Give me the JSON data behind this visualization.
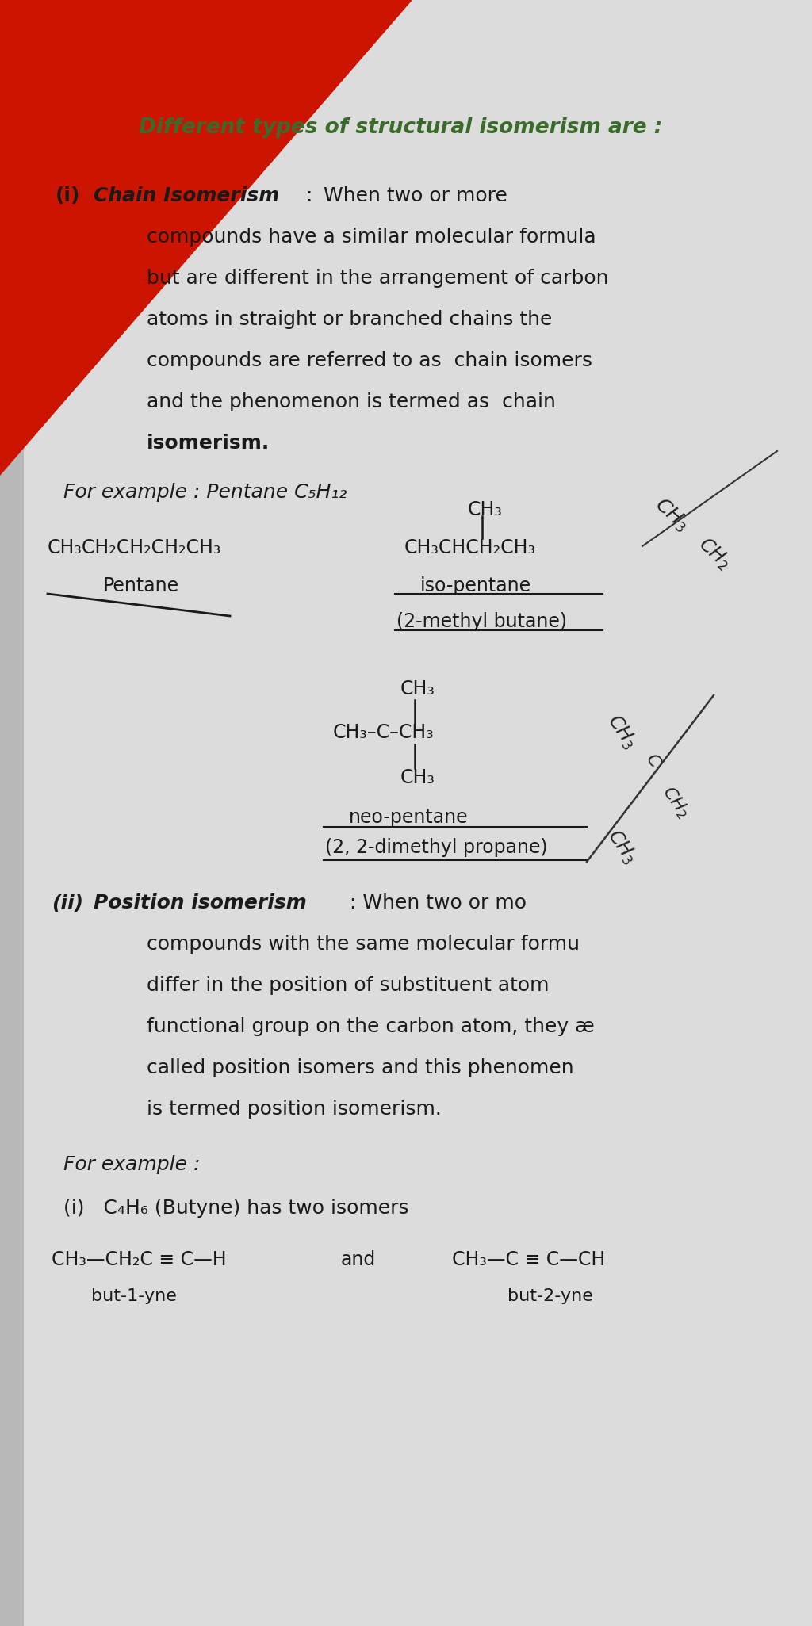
{
  "bg_color": "#b8b8b8",
  "page_color": "#dcdcdc",
  "red_color": "#cc1500",
  "text_dark": "#1a1a1a",
  "text_green": "#3a6b2a",
  "title": "Different types of structural isomerism are :",
  "sec1_num": "(i)",
  "sec1_head": "Chain Isomerism",
  "sec1_rest": " : When two or more",
  "body1_lines": [
    "compounds have a similar molecular formula",
    "but are different in the arrangement of carbon",
    "atoms in straight or branched chains the",
    "compounds are referred to as  chain isomers",
    "and the phenomenon is termed as  chain",
    "isomerism."
  ],
  "example1": "For example : Pentane C₅H₁₂",
  "pentane_formula": "CH₃CH₂CH₂CH₂CH₃",
  "pentane_label": "Pentane",
  "iso_ch3": "CH₃",
  "iso_formula": "CH₃CHCH₂CH₃",
  "iso_label1": "iso-pentane",
  "iso_label2": "(2-methyl butane)",
  "neo_ch3_top": "CH₃",
  "neo_mid": "CH₃–C–CH₃",
  "neo_ch3_bot": "CH₃",
  "neo_label1": "neo-pentane",
  "neo_label2": "(2, 2-dimethyl propane)",
  "sec2_num": "(ii)",
  "sec2_head": "Position isomerism",
  "sec2_rest": " : When two or mo",
  "body2_lines": [
    "compounds with the same molecular formu",
    "differ in the position of substituent atom",
    "functional group on the carbon atom, they æ",
    "called position isomers and this phenomen",
    "is termed position isomerism."
  ],
  "example2": "For example :",
  "butyne_intro": "(i)   C₄H₆ (Butyne) has two isomers",
  "but1_formula": "CH₃—CH₂C ≡ C—H",
  "and_word": "and",
  "but2_formula": "CH₃—C ≡ C—CH",
  "but1_label": "but-1-yne",
  "but2_label": "but-2-yne",
  "handwritten_iso": [
    "CH₃",
    "CH₂"
  ],
  "handwritten_neo": [
    "CH₃",
    "C",
    "CH₂",
    "CH₃"
  ]
}
